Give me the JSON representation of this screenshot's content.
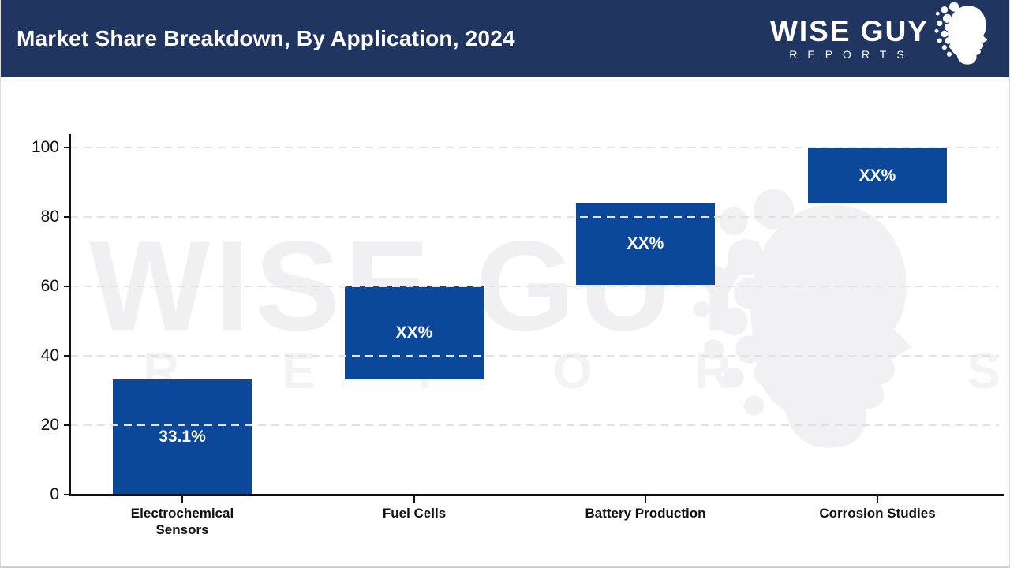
{
  "header": {
    "title": "Market Share Breakdown, By Application, 2024"
  },
  "logo": {
    "line1": "WISE GUY",
    "line2": "REPORTS"
  },
  "watermark": {
    "line1": "WISE GUY",
    "line2": "R E P O R T S"
  },
  "colors": {
    "header_navy": "#213561",
    "bar_blue": "#0b4899",
    "gridline": "#e2e2e2",
    "axis": "#111111",
    "watermark_gray": "#f1f1f4",
    "bar_label_text": "#ffffff"
  },
  "chart_data": {
    "type": "bar",
    "subtype": "waterfall",
    "title": "Market Share Breakdown, By Application, 2024",
    "xlabel": "",
    "ylabel": "",
    "ylim": [
      0,
      104
    ],
    "yticks": [
      0,
      20,
      40,
      60,
      80,
      100
    ],
    "grid": "horizontal dashed",
    "legend": "none",
    "categories": [
      "Electrochemical Sensors",
      "Fuel Cells",
      "Battery Production",
      "Corrosion Studies"
    ],
    "bars": [
      {
        "category": "Electrochemical Sensors",
        "start": 0,
        "end": 33.1,
        "label": "33.1%"
      },
      {
        "category": "Fuel Cells",
        "start": 33.1,
        "end": 60.1,
        "label": "XX%"
      },
      {
        "category": "Battery Production",
        "start": 60.5,
        "end": 84.0,
        "label": "XX%"
      },
      {
        "category": "Corrosion Studies",
        "start": 84.0,
        "end": 99.8,
        "label": "XX%"
      }
    ]
  }
}
